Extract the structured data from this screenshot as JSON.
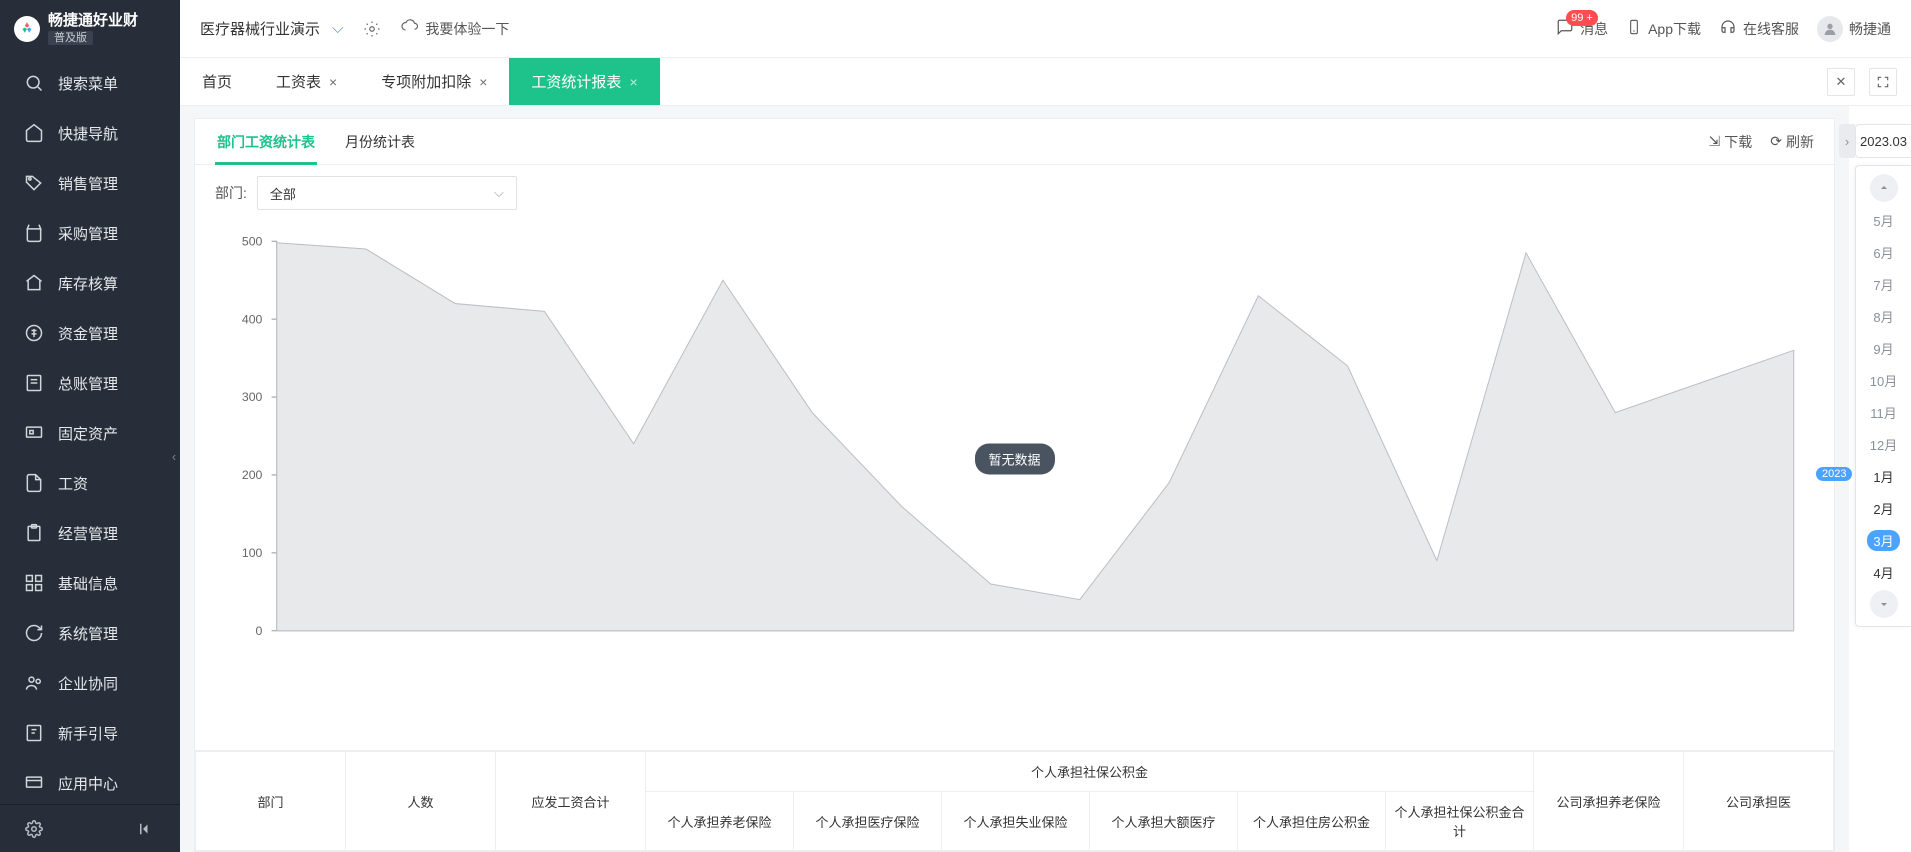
{
  "brand": {
    "title": "畅捷通好业财",
    "badge": "普及版"
  },
  "sidebar": {
    "items": [
      {
        "label": "搜索菜单",
        "icon": "search"
      },
      {
        "label": "快捷导航",
        "icon": "home"
      },
      {
        "label": "销售管理",
        "icon": "tag"
      },
      {
        "label": "采购管理",
        "icon": "bag"
      },
      {
        "label": "库存核算",
        "icon": "house"
      },
      {
        "label": "资金管理",
        "icon": "coin"
      },
      {
        "label": "总账管理",
        "icon": "ledger"
      },
      {
        "label": "固定资产",
        "icon": "asset"
      },
      {
        "label": "工资",
        "icon": "doc"
      },
      {
        "label": "经营管理",
        "icon": "clipboard"
      },
      {
        "label": "基础信息",
        "icon": "grid"
      },
      {
        "label": "系统管理",
        "icon": "refresh"
      },
      {
        "label": "企业协同",
        "icon": "team"
      },
      {
        "label": "新手引导",
        "icon": "guide"
      },
      {
        "label": "应用中心",
        "icon": "apps"
      }
    ]
  },
  "topbar": {
    "workspace": "医疗器械行业演示",
    "try_label": "我要体验一下",
    "messages_label": "消息",
    "messages_badge": "99 +",
    "app_label": "App下载",
    "support_label": "在线客服",
    "user_label": "畅捷通"
  },
  "tabs": [
    {
      "label": "首页",
      "closable": false,
      "active": false
    },
    {
      "label": "工资表",
      "closable": true,
      "active": false
    },
    {
      "label": "专项附加扣除",
      "closable": true,
      "active": false
    },
    {
      "label": "工资统计报表",
      "closable": true,
      "active": true
    }
  ],
  "sub_tabs": [
    {
      "label": "部门工资统计表",
      "active": true
    },
    {
      "label": "月份统计表",
      "active": false
    }
  ],
  "actions": {
    "download": "下载",
    "refresh": "刷新"
  },
  "filter": {
    "label": "部门:",
    "value": "全部"
  },
  "chart": {
    "type": "area",
    "ylim": [
      0,
      500
    ],
    "yticks": [
      0,
      100,
      200,
      300,
      400,
      500
    ],
    "values": [
      498,
      490,
      420,
      410,
      240,
      450,
      280,
      160,
      60,
      40,
      190,
      430,
      340,
      90,
      485,
      280,
      320,
      360
    ],
    "fill_color": "#e8e9eb",
    "stroke_color": "#bdbfc4",
    "axis_color": "#999999",
    "tick_font_size": 12,
    "tick_color": "#666666",
    "no_data_label": "暂无数据",
    "badge_bg": "#4a5360",
    "badge_fg": "#ffffff"
  },
  "table": {
    "group_header": "个人承担社保公积金",
    "cols_fixed": [
      "部门",
      "人数",
      "应发工资合计"
    ],
    "cols_group": [
      "个人承担养老保险",
      "个人承担医疗保险",
      "个人承担失业保险",
      "个人承担大额医疗",
      "个人承担住房公积金",
      "个人承担社保公积金合计"
    ],
    "cols_after": [
      "公司承担养老保险",
      "公司承担医"
    ]
  },
  "month_rail": {
    "period": "2023.03",
    "year_badge": "2023",
    "prev_months": [
      "5月",
      "6月",
      "7月",
      "8月",
      "9月",
      "10月",
      "11月",
      "12月"
    ],
    "cur_months": [
      "1月",
      "2月",
      "3月",
      "4月"
    ],
    "active": "3月"
  }
}
